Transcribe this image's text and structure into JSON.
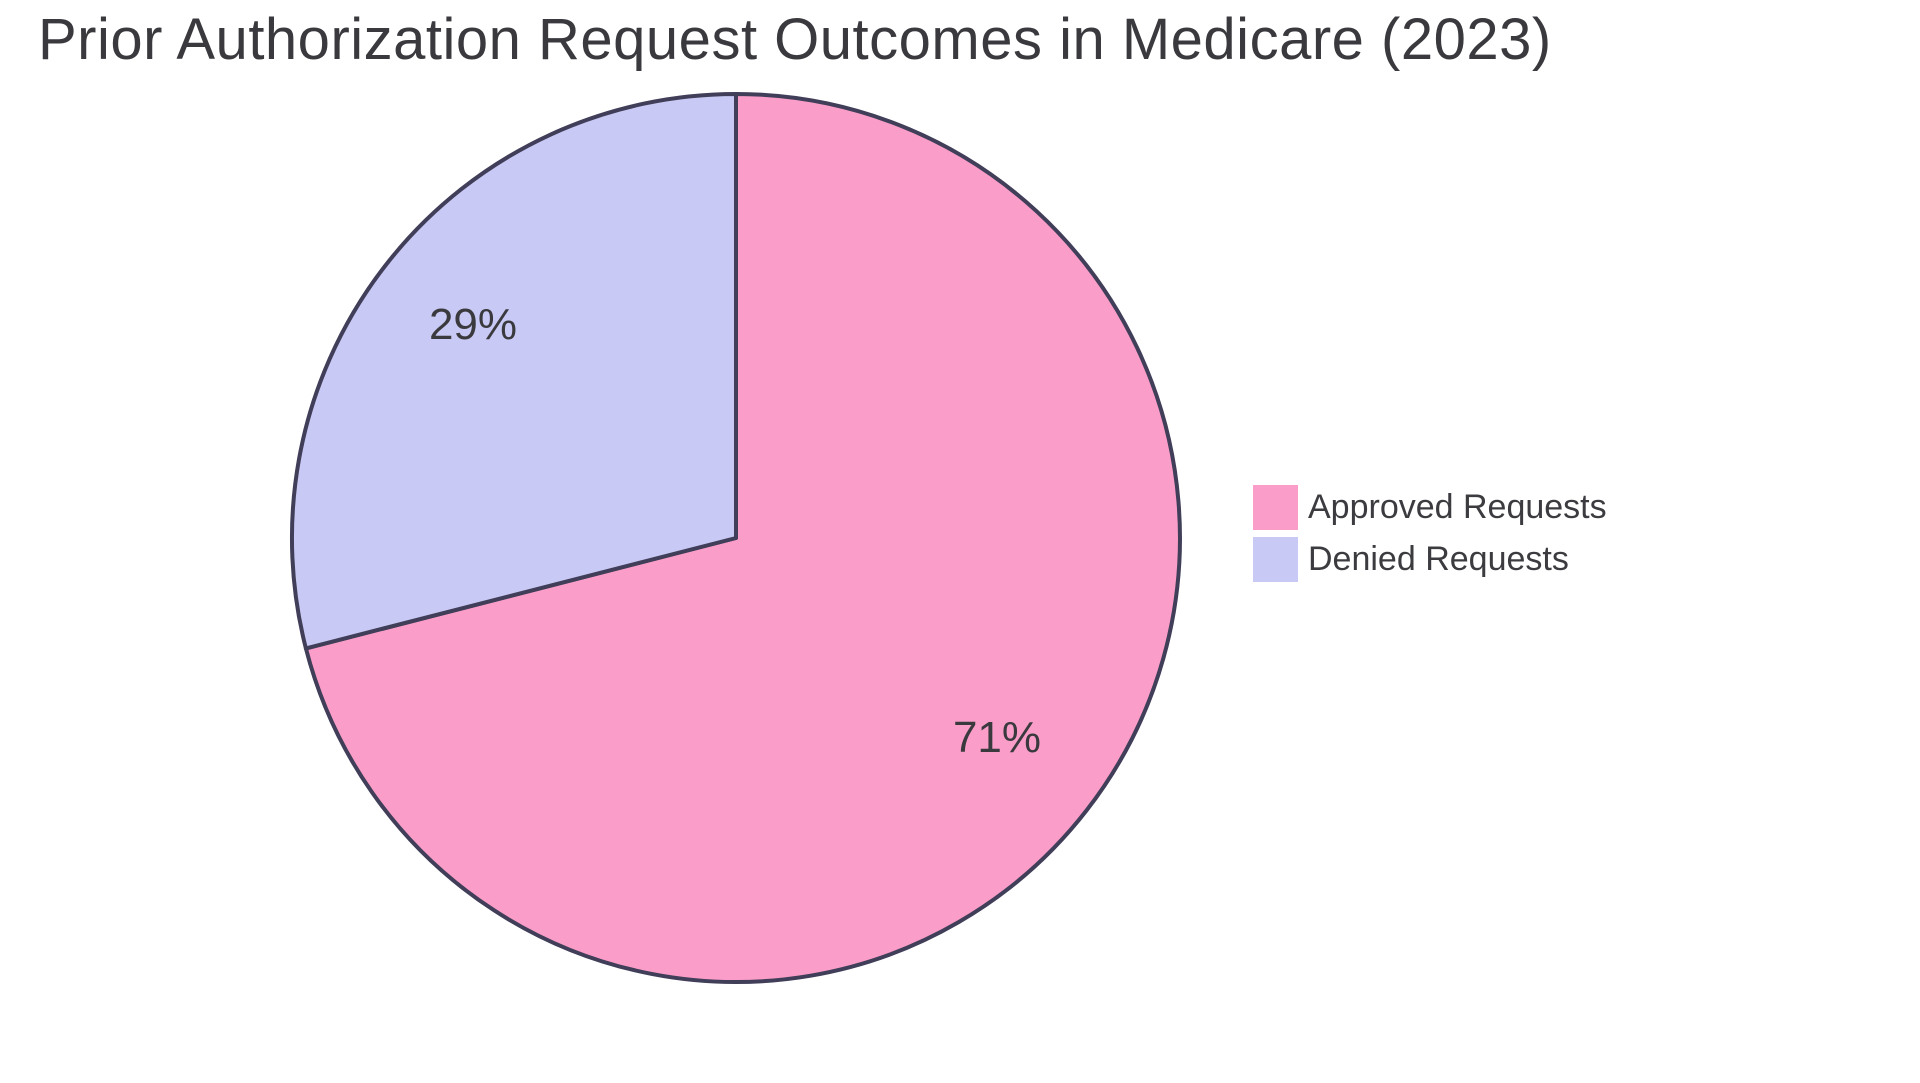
{
  "title": "Prior Authorization Request Outcomes in Medicare (2023)",
  "background_color": "#FFFFFF",
  "chart_data": {
    "type": "pie",
    "title": "Prior Authorization Request Outcomes in Medicare (2023)",
    "labels": [
      "Approved Requests",
      "Denied Requests"
    ],
    "values": [
      71,
      29
    ],
    "slice_labels": [
      "71%",
      "29%"
    ],
    "colors": [
      "#FA9EC9",
      "#C9C9F5"
    ],
    "stroke_color": "#403E58",
    "text_color": "#3A3A3E",
    "start_angle_deg": 0,
    "direction": "clockwise",
    "legend_position": "right",
    "legend_items": [
      "Approved Requests",
      "Denied Requests"
    ]
  }
}
